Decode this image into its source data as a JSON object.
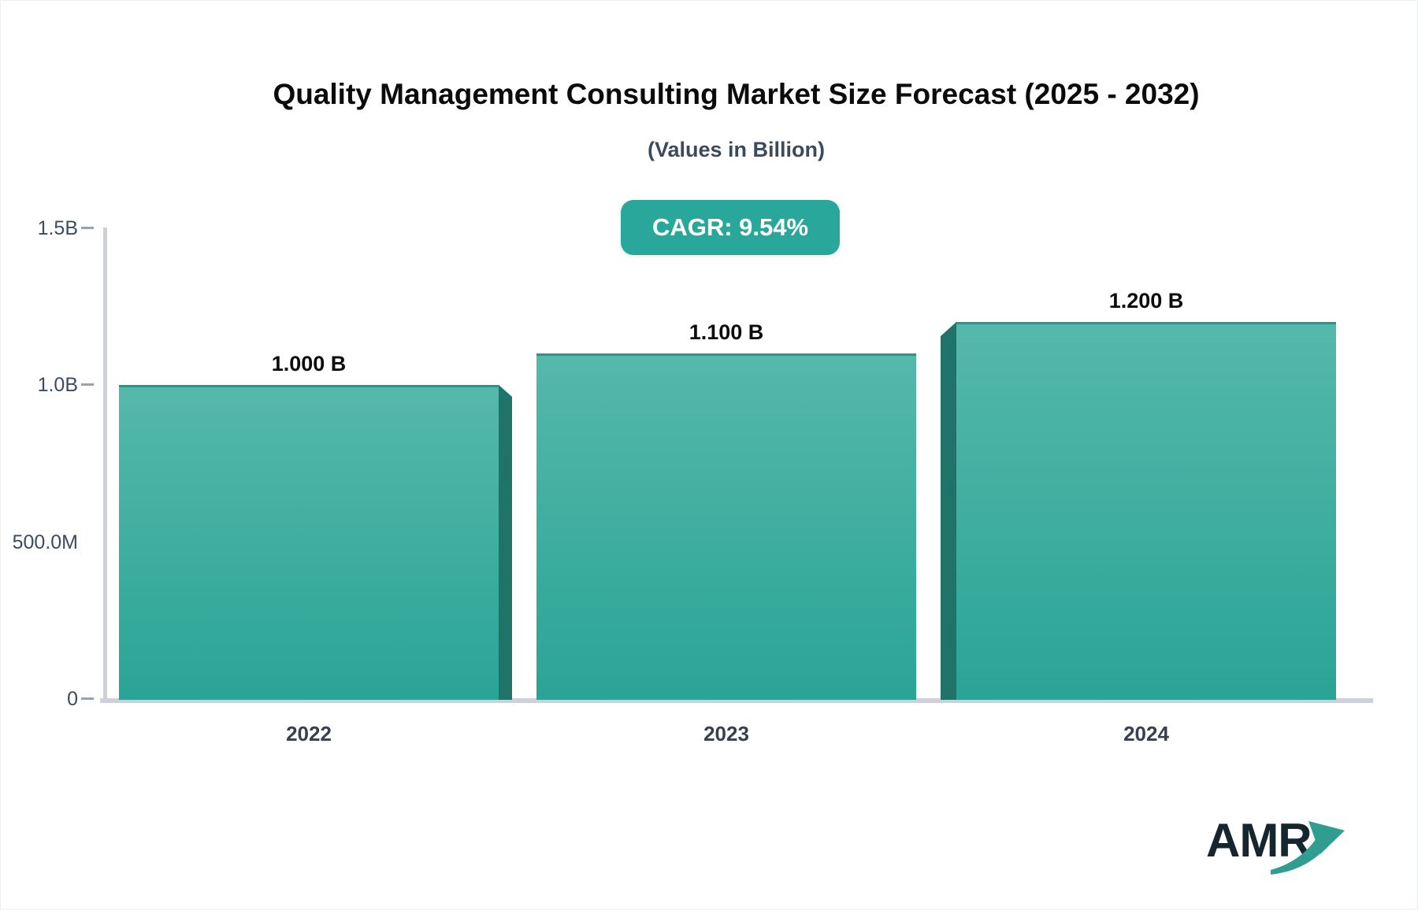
{
  "chart_data": {
    "type": "bar",
    "title": "Quality Management Consulting Market Size Forecast (2025 - 2032)",
    "subtitle": "(Values in Billion)",
    "cagr_label": "CAGR: 9.54%",
    "categories": [
      "2022",
      "2023",
      "2024"
    ],
    "values": [
      1.0,
      1.1,
      1.2
    ],
    "value_labels": [
      "1.000 B",
      "1.100 B",
      "1.200 B"
    ],
    "ylim": [
      0,
      1.5
    ],
    "yticks": [
      {
        "value": 1.5,
        "label": "1.5B",
        "dash": true
      },
      {
        "value": 1.0,
        "label": "1.0B",
        "dash": true
      },
      {
        "value": 0.5,
        "label": "500.0M",
        "dash": false
      },
      {
        "value": 0.0,
        "label": "0",
        "dash": true
      }
    ],
    "grid": false,
    "legend": false
  },
  "logo": {
    "text": "AMR"
  },
  "colors": {
    "bar_gradient_top": "#55b8ab",
    "bar_gradient_bottom": "#2aa496",
    "bar_top_border": "#28968a",
    "bar_side_shadow": "#1f7368",
    "axis_line": "#ccd1da",
    "tick_dash": "#99a1ae",
    "axis_label": "#3e4c60",
    "year_label": "#36404e",
    "value_label": "#0c0c0c",
    "badge_bg": "#2aa79b",
    "badge_text": "#ffffff",
    "title_text": "#0b0b0c",
    "subtitle_text": "#3c4a5c",
    "logo_text": "#16262f",
    "logo_arrow": "#2f9e91"
  }
}
